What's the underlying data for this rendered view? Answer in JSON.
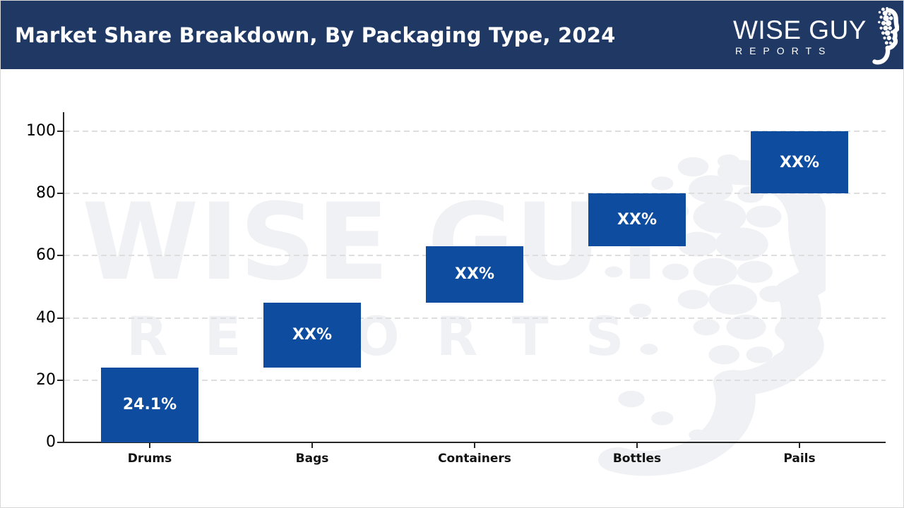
{
  "header": {
    "title": "Market Share Breakdown, By Packaging Type, 2024",
    "logo": {
      "line1": "WISE GUY",
      "line2": "REPORTS"
    }
  },
  "watermark": {
    "line1": "WISE GUY",
    "line2": "REPORTS"
  },
  "colors": {
    "header_bg": "#1f3864",
    "bar": "#0d4c9e",
    "bar_label": "#ffffff",
    "axis": "#262626",
    "grid": "#dedede",
    "watermark": "#f0f1f4",
    "page_border": "#d8d8d8"
  },
  "chart_data": {
    "type": "bar",
    "subtype": "waterfall",
    "title": "Market Share Breakdown, By Packaging Type, 2024",
    "categories": [
      "Drums",
      "Bags",
      "Containers",
      "Bottles",
      "Pails"
    ],
    "segments": [
      {
        "category": "Drums",
        "start": 0,
        "end": 24.1,
        "label": "24.1%"
      },
      {
        "category": "Bags",
        "start": 24.1,
        "end": 45,
        "label": "XX%"
      },
      {
        "category": "Containers",
        "start": 45,
        "end": 63,
        "label": "XX%"
      },
      {
        "category": "Bottles",
        "start": 63,
        "end": 80,
        "label": "XX%"
      },
      {
        "category": "Pails",
        "start": 80,
        "end": 100,
        "label": "XX%"
      }
    ],
    "ylim": [
      0,
      100
    ],
    "yticks": [
      0,
      20,
      40,
      60,
      80,
      100
    ],
    "xlabel": "",
    "ylabel": "",
    "grid": "horizontal-dashed",
    "legend": "none"
  }
}
